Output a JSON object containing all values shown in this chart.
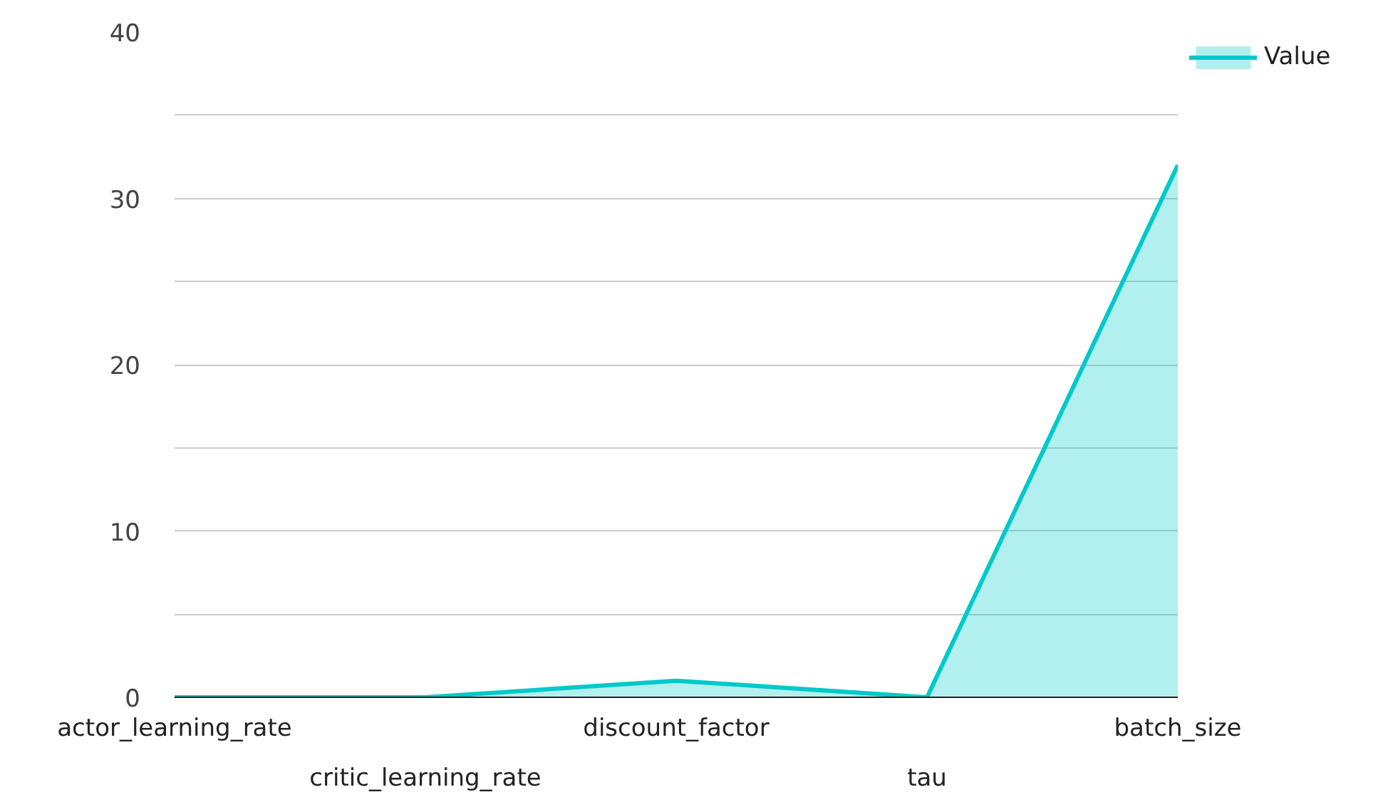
{
  "chart_data": {
    "type": "area",
    "categories": [
      "actor_learning_rate",
      "critic_learning_rate",
      "discount_factor",
      "tau",
      "batch_size"
    ],
    "series": [
      {
        "name": "Value",
        "color": "#00c9c9",
        "values": [
          0,
          0,
          1,
          0,
          32
        ]
      }
    ],
    "ylim": [
      0,
      40
    ],
    "yticks": [
      0,
      {
        "value": 5,
        "label": null
      },
      10,
      {
        "value": 15,
        "label": null
      },
      20,
      {
        "value": 25,
        "label": null
      },
      30,
      {
        "value": 35,
        "label": null
      },
      40
    ],
    "grid": "y",
    "legend": "top right"
  }
}
